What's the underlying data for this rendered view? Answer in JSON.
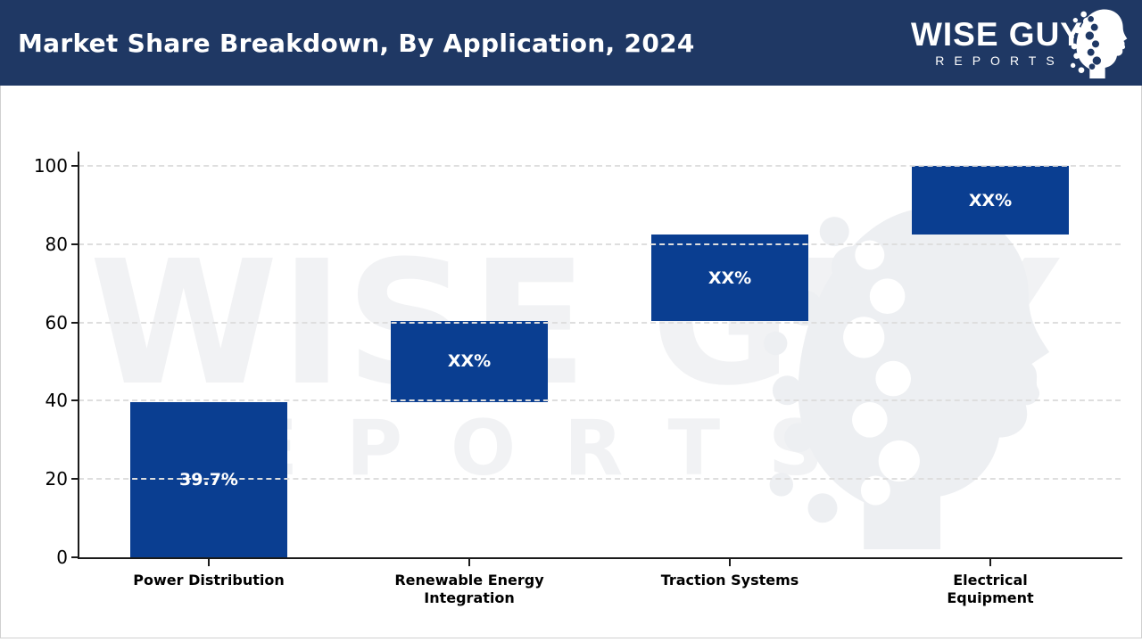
{
  "header": {
    "title": "Market Share Breakdown, By Application, 2024",
    "logo": {
      "line1": "WISE GUY",
      "line2": "REPORTS"
    }
  },
  "watermark": {
    "line1": "WISE GUY",
    "line2": "REPORTS"
  },
  "colors": {
    "header_bg": "#1f3864",
    "bar": "#0a3e91",
    "bar_label": "#ffffff",
    "grid": "#dedede",
    "axis": "#1a1a1a",
    "watermark": "#f1f2f4",
    "watermark_face": "#edeff2",
    "border": "#d0d0d0"
  },
  "chart_data": {
    "type": "bar",
    "subtype": "waterfall",
    "title": "Market Share Breakdown, By Application, 2024",
    "categories": [
      "Power Distribution",
      "Renewable Energy\nIntegration",
      "Traction Systems",
      "Electrical\nEquipment"
    ],
    "segments": [
      {
        "category": "Power Distribution",
        "start": 0,
        "end": 39.7,
        "label": "39.7%"
      },
      {
        "category": "Renewable Energy Integration",
        "start": 39.7,
        "end": 60.4,
        "label": "XX%"
      },
      {
        "category": "Traction Systems",
        "start": 60.4,
        "end": 82.4,
        "label": "XX%"
      },
      {
        "category": "Electrical Equipment",
        "start": 82.4,
        "end": 100,
        "label": "XX%"
      }
    ],
    "yticks": [
      0,
      20,
      40,
      60,
      80,
      100
    ],
    "ylim": [
      0,
      104
    ],
    "xlabel": "",
    "ylabel": "",
    "grid": "horizontal-dashed",
    "legend": "none"
  }
}
